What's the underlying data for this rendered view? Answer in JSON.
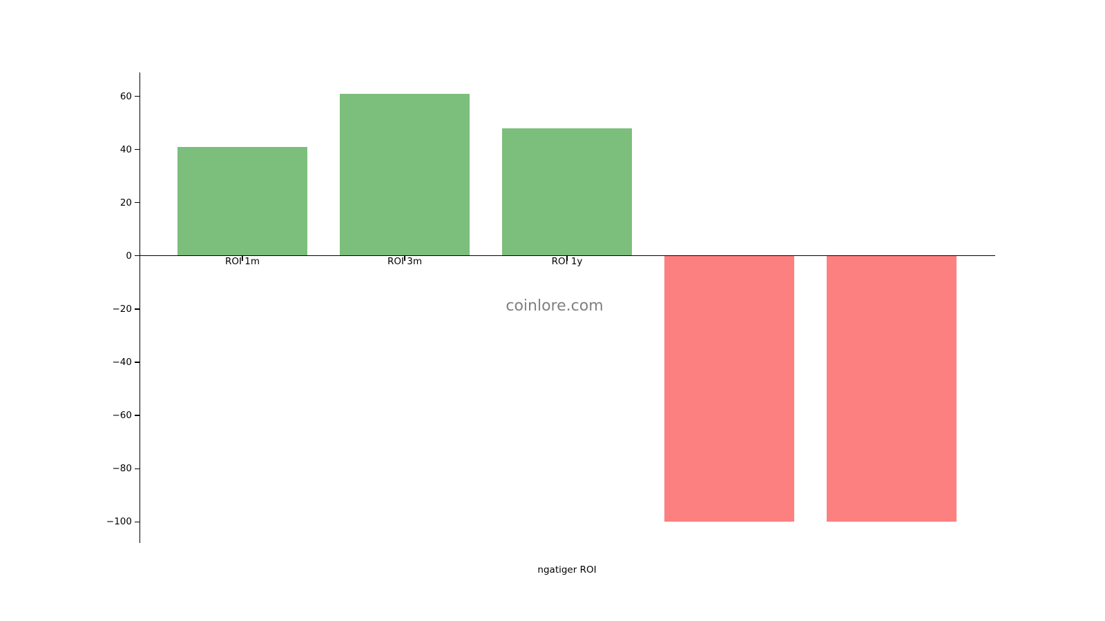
{
  "chart_data": {
    "type": "bar",
    "title": "",
    "xlabel": "ngatiger ROI",
    "ylabel": "",
    "watermark": "coinlore.com",
    "categories": [
      "ROI 1m",
      "ROI 3m",
      "ROI 1y",
      "",
      ""
    ],
    "values": [
      41,
      61,
      48,
      -100,
      -100
    ],
    "yticks": [
      60,
      40,
      20,
      0,
      -20,
      -40,
      -60,
      -80,
      -100
    ],
    "ytick_labels": [
      "60",
      "40",
      "20",
      "0",
      "−20",
      "−40",
      "−60",
      "−80",
      "−100"
    ],
    "ylim": [
      -108,
      69
    ],
    "xlim": [
      -0.64,
      4.64
    ],
    "bar_width_units": 0.8,
    "grid": false,
    "legend": "none",
    "colors": {
      "positive_bar": "#7CBE7C",
      "negative_bar": "#FC8080",
      "axis": "#000000",
      "watermark": "#808080",
      "background": "#ffffff"
    },
    "notes_visible_only": "x tick labels of the two negative bars are covered by the bars"
  }
}
